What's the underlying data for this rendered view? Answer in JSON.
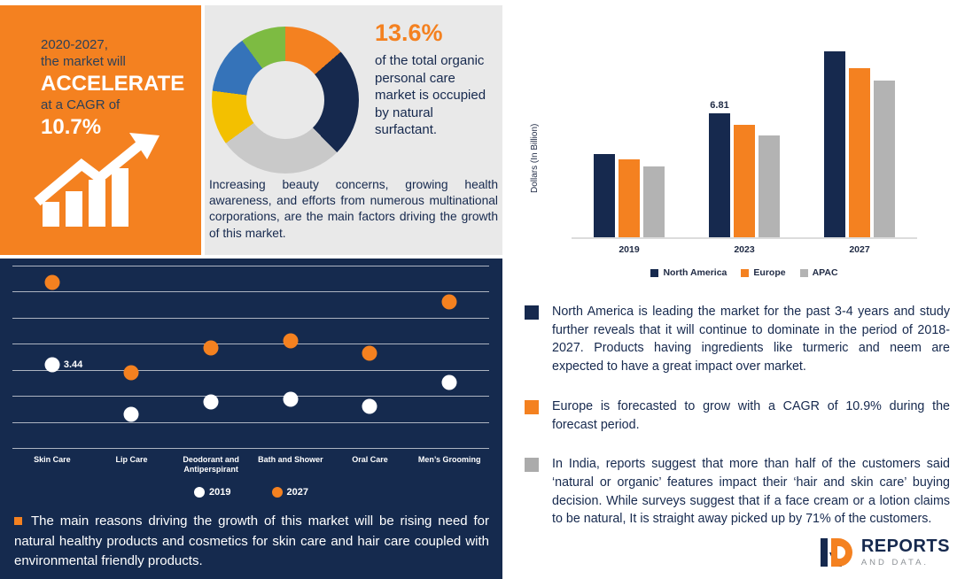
{
  "colors": {
    "orange": "#F48120",
    "navy": "#16294E",
    "panel_navy": "#152A4E",
    "light_gray": "#E9E9E9",
    "gray": "#ABABAB"
  },
  "callout": {
    "period": "2020-2027,",
    "lead": "the market will",
    "emphasis": "ACCELERATE",
    "cagr_label": "at a CAGR of",
    "cagr_value": "10.7%"
  },
  "stat": {
    "value": "13.6%",
    "text": "of the total organic personal care market is occupied by natural surfactant."
  },
  "drivers_text": "Increasing beauty concerns, growing health awareness, and efforts from numerous multinational corporations, are the main factors driving the growth of this market.",
  "panel_note": "The main reasons driving the growth of this market will be rising need for natural healthy products and cosmetics for skin care and hair care coupled with environmental friendly products.",
  "bullets": [
    {
      "color": "#16294E",
      "text": "North America is leading the market for the past 3-4 years and study further reveals that it will continue to dominate in the period of 2018-2027. Products having ingredients like turmeric and neem are expected to have a great impact over market."
    },
    {
      "color": "#F48120",
      "text": "Europe is forecasted to grow with a CAGR of 10.9% during the forecast period."
    },
    {
      "color": "#ABABAB",
      "text": "In India, reports suggest that more than half of the customers said ‘natural or organic’ features impact their ‘hair and skin care’ buying decision. While surveys suggest that if a face cream or a lotion claims to be natural, It is straight away picked up by 71% of the customers."
    }
  ],
  "logo": {
    "title": "REPORTS",
    "subtitle": "AND DATA."
  },
  "chart_data": [
    {
      "type": "pie",
      "subtype": "donut",
      "title": "",
      "slices": [
        {
          "label": "natural surfactant share",
          "value": 13.6,
          "color": "#F48120"
        },
        {
          "label": "",
          "value": 24,
          "color": "#16294E"
        },
        {
          "label": "",
          "value": 27.4,
          "color": "#C9C9C9"
        },
        {
          "label": "",
          "value": 12,
          "color": "#F3C000"
        },
        {
          "label": "",
          "value": 13,
          "color": "#3573B9"
        },
        {
          "label": "",
          "value": 10,
          "color": "#7DBB42"
        }
      ],
      "legend_position": "none"
    },
    {
      "type": "bar",
      "title": "",
      "categories": [
        "2019",
        "2023",
        "2027"
      ],
      "series": [
        {
          "name": "North America",
          "color": "#16294E",
          "values": [
            4.6,
            6.81,
            10.2
          ],
          "labels": [
            "",
            "6.81",
            ""
          ]
        },
        {
          "name": "Europe",
          "color": "#F48120",
          "values": [
            4.3,
            6.2,
            9.3
          ],
          "labels": [
            "",
            "",
            ""
          ]
        },
        {
          "name": "APAC",
          "color": "#B3B3B3",
          "values": [
            3.9,
            5.6,
            8.6
          ],
          "labels": [
            "",
            "",
            ""
          ]
        }
      ],
      "xlabel": "",
      "ylabel": "Dollars (In Billion)",
      "ylim": [
        0,
        11
      ],
      "grid": false,
      "legend_position": "bottom"
    },
    {
      "type": "scatter",
      "title": "",
      "categories": [
        "Skin Care",
        "Lip Care",
        "Deodorant and Antiperspirant",
        "Bath and Shower",
        "Oral Care",
        "Men’s Grooming"
      ],
      "series": [
        {
          "name": "2019",
          "color": "#FFFFFF",
          "values": [
            3.44,
            1.4,
            1.9,
            2.0,
            1.7,
            2.7
          ],
          "labels": [
            "3.44",
            "",
            "",
            "",
            "",
            ""
          ]
        },
        {
          "name": "2027",
          "color": "#F48120",
          "values": [
            6.8,
            3.1,
            4.1,
            4.4,
            3.9,
            6.0
          ],
          "labels": [
            "",
            "",
            "",
            "",
            "",
            ""
          ]
        }
      ],
      "ylim": [
        0,
        7.5
      ],
      "gridlines": 8,
      "grid": true,
      "legend_position": "bottom"
    }
  ]
}
